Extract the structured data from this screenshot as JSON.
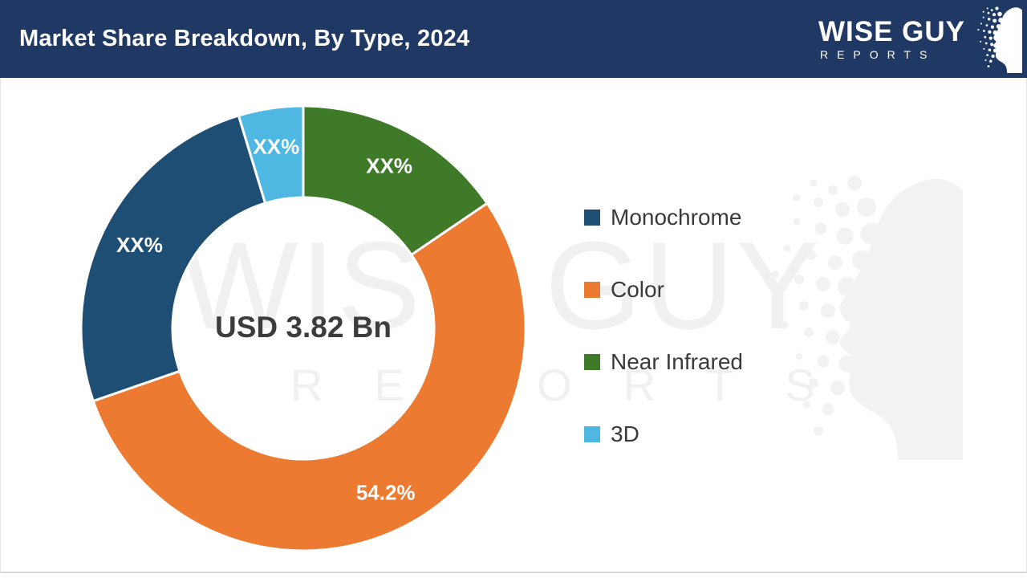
{
  "header": {
    "title": "Market Share Breakdown, By Type, 2024",
    "bg_color": "#203864",
    "logo": {
      "line1": "WISE GUY",
      "line2": "REPORTS"
    }
  },
  "watermark": {
    "line1": "WISE GUY",
    "line2": "REPORTS"
  },
  "chart_data": {
    "type": "pie",
    "subtype": "donut",
    "title": "Market Share Breakdown, By Type, 2024",
    "center_label": "USD 3.82 Bn",
    "start_angle": "12 o'clock",
    "direction": "clockwise",
    "segments": [
      {
        "label": "Near Infrared",
        "value_pct": 15.5,
        "display_label": "XX%",
        "color": "#3F7A28"
      },
      {
        "label": "Color",
        "value_pct": 54.2,
        "display_label": "54.2%",
        "color": "#EC7A31"
      },
      {
        "label": "Monochrome",
        "value_pct": 25.6,
        "display_label": "XX%",
        "color": "#1F4E74"
      },
      {
        "label": "3D",
        "value_pct": 4.7,
        "display_label": "XX%",
        "color": "#4FB8E2"
      }
    ],
    "legend": [
      {
        "label": "Monochrome",
        "color": "#1F4E74"
      },
      {
        "label": "Color",
        "color": "#EC7A31"
      },
      {
        "label": "Near Infrared",
        "color": "#3F7A28"
      },
      {
        "label": "3D",
        "color": "#4FB8E2"
      }
    ],
    "legend_position": "right"
  }
}
